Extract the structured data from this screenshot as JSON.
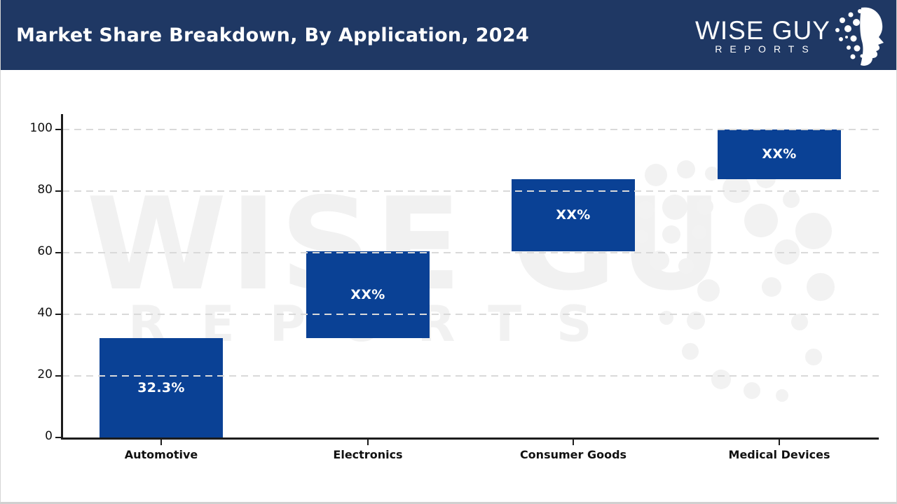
{
  "header": {
    "title": "Market Share Breakdown, By Application, 2024",
    "bg_color": "#1f3864",
    "logo": {
      "line1": "WISE GUY",
      "line2": "REPORTS"
    }
  },
  "watermark": {
    "line1": "WISE GU",
    "line2": "REPORTS"
  },
  "chart_data": {
    "type": "bar",
    "subtype": "waterfall",
    "title": "Market Share Breakdown, By Application, 2024",
    "xlabel": "",
    "ylabel": "",
    "ylim": [
      0,
      100
    ],
    "yticks": [
      0,
      20,
      40,
      60,
      80,
      100
    ],
    "grid": "horizontal-dashed",
    "legend": "none",
    "bar_color": "#0a4195",
    "categories": [
      "Automotive",
      "Electronics",
      "Consumer Goods",
      "Medical Devices"
    ],
    "segments": [
      {
        "category": "Automotive",
        "start": 0,
        "end": 32.3,
        "value": 32.3,
        "label": "32.3%"
      },
      {
        "category": "Electronics",
        "start": 32.3,
        "end": 60.5,
        "value": 28.2,
        "label": "XX%"
      },
      {
        "category": "Consumer Goods",
        "start": 60.5,
        "end": 83.9,
        "value": 23.4,
        "label": "XX%"
      },
      {
        "category": "Medical Devices",
        "start": 83.9,
        "end": 100,
        "value": 16.1,
        "label": "XX%"
      }
    ]
  }
}
